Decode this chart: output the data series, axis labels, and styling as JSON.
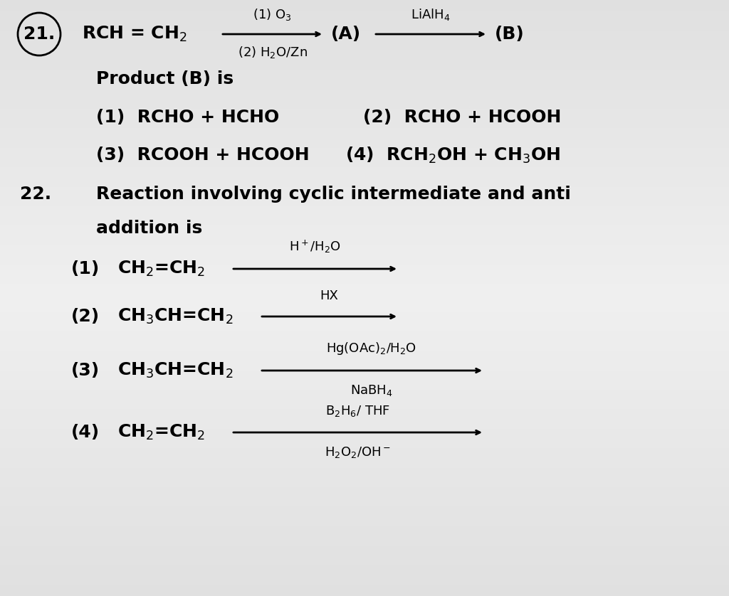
{
  "bg_color": "#e8e8e8",
  "text_color": "#000000",
  "figsize": [
    10.24,
    8.38
  ],
  "dpi": 100,
  "q21_label": "21.",
  "q21_eq": "RCH = CH$_2$",
  "q21_r1_top": "(1) O$_3$",
  "q21_r1_bot": "(2) H$_2$O/Zn",
  "q21_A": "(A)",
  "q21_r2": "LiAlH$_4$",
  "q21_B": "(B)",
  "q21_product": "Product (B) is",
  "q21_o1": "(1)  RCHO + HCHO",
  "q21_o2": "(2)  RCHO + HCOOH",
  "q21_o3": "(3)  RCOOH + HCOOH",
  "q21_o4": "(4)  RCH$_2$OH + CH$_3$OH",
  "q22_label": "22.",
  "q22_q1": "Reaction involving cyclic intermediate and anti",
  "q22_q2": "addition is",
  "q22_1_mol": "CH$_2$=CH$_2$",
  "q22_1_r": "H$^+$/H$_2$O",
  "q22_2_mol": "CH$_3$CH=CH$_2$",
  "q22_2_r": "HX",
  "q22_3_mol": "CH$_3$CH=CH$_2$",
  "q22_3_rt": "Hg(OAc)$_2$/H$_2$O",
  "q22_3_rb": "NaBH$_4$",
  "q22_4_mol": "CH$_2$=CH$_2$",
  "q22_4_rt": "B$_2$H$_6$/ THF",
  "q22_4_rb": "H$_2$O$_2$/OH$^-$",
  "arrow_color": "#000000",
  "fs_bold": 18,
  "fs_reg": 17,
  "fs_small": 13
}
